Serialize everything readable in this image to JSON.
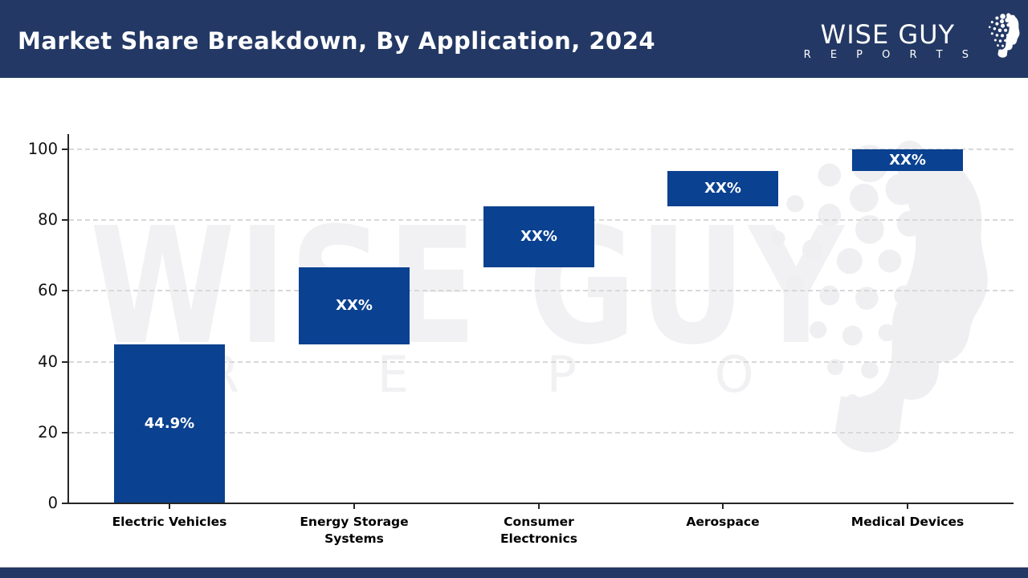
{
  "header": {
    "title": "Market Share Breakdown, By Application, 2024",
    "bg_color": "#233864",
    "text_color": "#ffffff"
  },
  "logo": {
    "line1": "WISE GUY",
    "line2": "R E P O R T S",
    "icon": "dotted-head-profile"
  },
  "watermark": {
    "line1": "WISE GUY",
    "line2": "R E P O R T S",
    "icon": "dotted-head-profile",
    "color": "#f1f1f3"
  },
  "footer": {
    "bg_color": "#233864"
  },
  "chart_data": {
    "type": "bar",
    "subtype": "waterfall",
    "title": "Market Share Breakdown, By Application, 2024",
    "categories": [
      "Electric Vehicles",
      "Energy Storage Systems",
      "Consumer Electronics",
      "Aerospace",
      "Medical Devices"
    ],
    "category_label_lines": [
      [
        "Electric Vehicles"
      ],
      [
        "Energy Storage",
        "Systems"
      ],
      [
        "Consumer",
        "Electronics"
      ],
      [
        "Aerospace"
      ],
      [
        "Medical Devices"
      ]
    ],
    "segments": [
      {
        "category": "Electric Vehicles",
        "start": 0,
        "end": 44.9,
        "value": 44.9,
        "label": "44.9%"
      },
      {
        "category": "Energy Storage Systems",
        "start": 44.9,
        "end": 66.7,
        "value": 21.8,
        "label": "XX%"
      },
      {
        "category": "Consumer Electronics",
        "start": 66.7,
        "end": 83.9,
        "value": 17.2,
        "label": "XX%"
      },
      {
        "category": "Aerospace",
        "start": 83.9,
        "end": 93.9,
        "value": 10.0,
        "label": "XX%"
      },
      {
        "category": "Medical Devices",
        "start": 93.9,
        "end": 100.0,
        "value": 6.1,
        "label": "XX%"
      }
    ],
    "xlabel": "",
    "ylabel": "",
    "yticks": [
      0,
      20,
      40,
      60,
      80,
      100
    ],
    "ylim": [
      0,
      105
    ],
    "grid": "horizontal-dashed",
    "grid_color": "#d8d8d8",
    "axis_color": "#262626",
    "bar_color": "#0a4190",
    "bar_label_color": "#ffffff",
    "legend": "none"
  }
}
